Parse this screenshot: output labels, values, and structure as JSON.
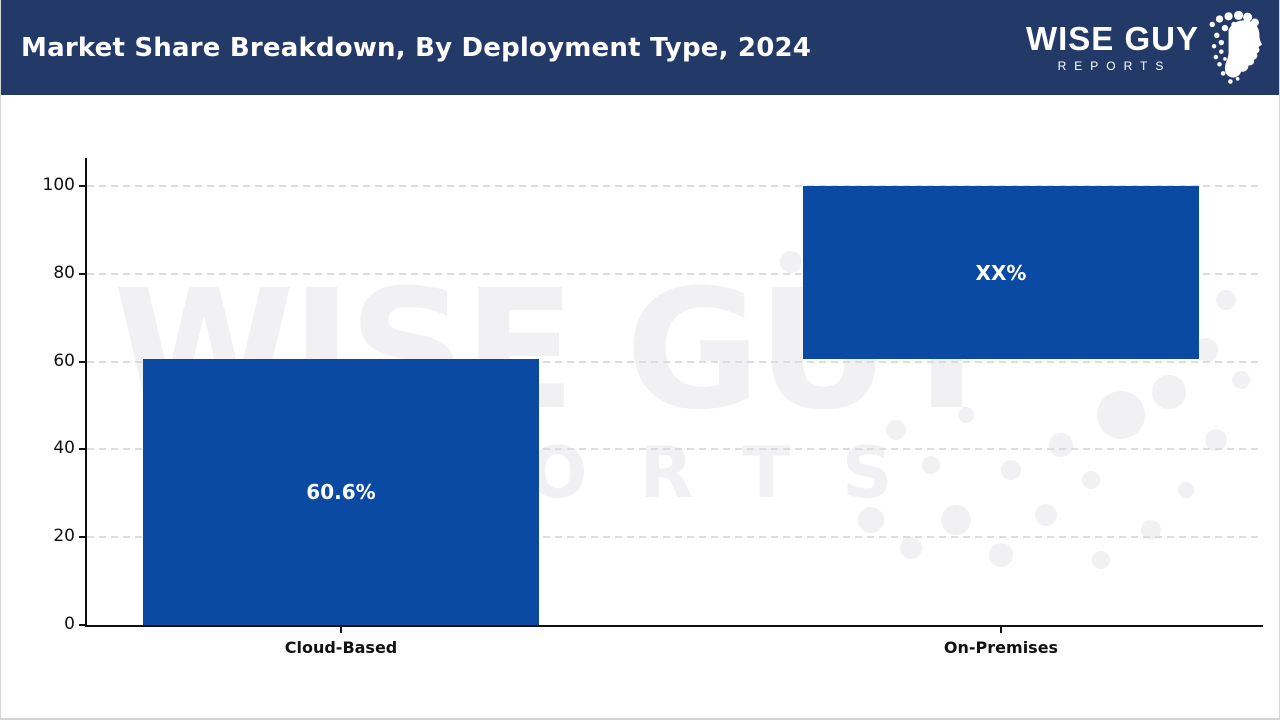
{
  "header": {
    "title": "Market Share Breakdown, By Deployment Type, 2024",
    "logo": {
      "line1": "WISE GUY",
      "line2": "REPORTS"
    }
  },
  "watermark": {
    "line1": "WISE GUY",
    "line2": "REPORTS"
  },
  "chart_data": {
    "type": "bar",
    "title": "Market Share Breakdown, By Deployment Type, 2024",
    "categories": [
      "Cloud-Based",
      "On-Premises"
    ],
    "bars": [
      {
        "category": "Cloud-Based",
        "start": 0,
        "end": 60.6,
        "label": "60.6%"
      },
      {
        "category": "On-Premises",
        "start": 60.6,
        "end": 100,
        "label": "XX%"
      }
    ],
    "yticks": [
      0,
      20,
      40,
      60,
      80,
      100
    ],
    "ylim": [
      0,
      106
    ],
    "xlabel": "",
    "ylabel": "",
    "legend": "none",
    "grid": "horizontal-dashed",
    "colors": {
      "bar": "#0b4aa3",
      "header_navy": "#233a69",
      "gridline": "#dcdcdc",
      "watermark": "#f1f1f4",
      "bar_label": "#ffffff",
      "axis": "#111111"
    }
  }
}
